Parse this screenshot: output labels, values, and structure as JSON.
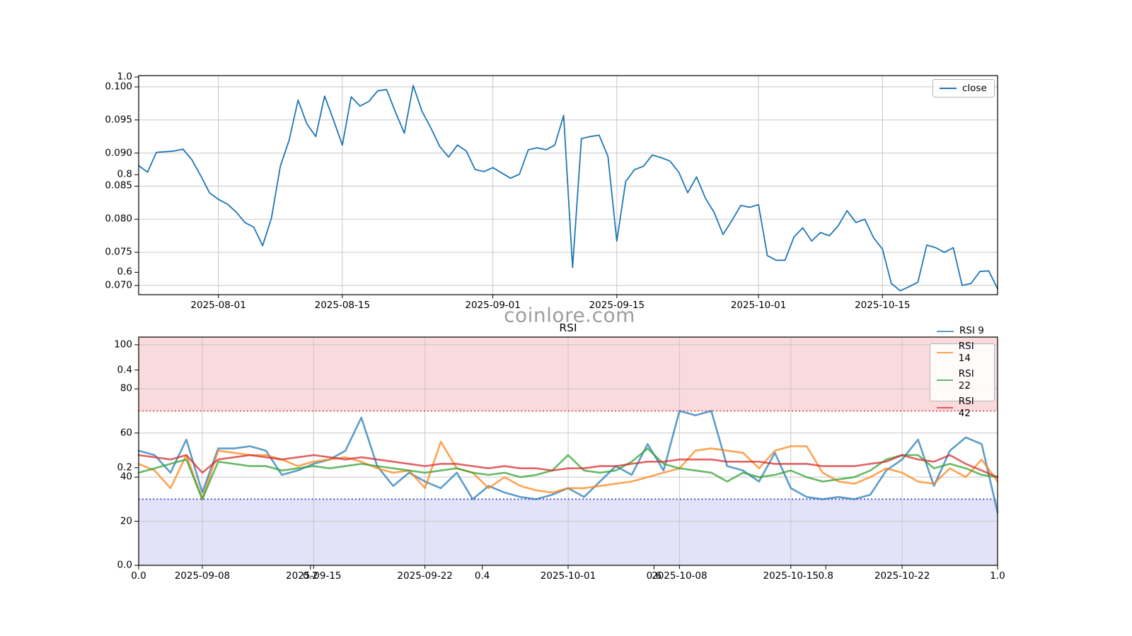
{
  "watermark": "coinlore.com",
  "figure_axis": {
    "left_tick_labels": [
      "1.0",
      "0.8",
      "0.6",
      "0.4",
      "0.2",
      "0.0"
    ],
    "bottom_tick_labels": [
      "0.0",
      "0.2",
      "0.4",
      "0.6",
      "0.8",
      "1.0"
    ]
  },
  "chart_data": [
    {
      "type": "line",
      "title": "",
      "xlabel": "",
      "ylabel": "",
      "start_date": "2025-07-23",
      "freq": "daily",
      "grid": true,
      "legend_position": "upper right",
      "ylim": [
        0.0686,
        0.1017
      ],
      "y_ticks": [
        {
          "label": "0.100",
          "value": 0.1
        },
        {
          "label": "0.095",
          "value": 0.095
        },
        {
          "label": "0.090",
          "value": 0.09
        },
        {
          "label": "0.085",
          "value": 0.085
        },
        {
          "label": "0.080",
          "value": 0.08
        },
        {
          "label": "0.075",
          "value": 0.075
        },
        {
          "label": "0.070",
          "value": 0.07
        }
      ],
      "x_ticks": [
        {
          "label": "2025-08-01",
          "day": 9
        },
        {
          "label": "2025-08-15",
          "day": 23
        },
        {
          "label": "2025-09-01",
          "day": 40
        },
        {
          "label": "2025-09-15",
          "day": 54
        },
        {
          "label": "2025-10-01",
          "day": 70
        },
        {
          "label": "2025-10-15",
          "day": 84
        }
      ],
      "series": [
        {
          "name": "close",
          "color": "#1f77b4",
          "opacity": 1,
          "width": 1.8,
          "values": [
            0.0881,
            0.0871,
            0.0901,
            0.0902,
            0.0903,
            0.0906,
            0.089,
            0.0866,
            0.084,
            0.083,
            0.0823,
            0.0811,
            0.0795,
            0.0788,
            0.076,
            0.0802,
            0.088,
            0.092,
            0.098,
            0.0944,
            0.0925,
            0.0986,
            0.095,
            0.0912,
            0.0985,
            0.0971,
            0.0978,
            0.0994,
            0.0996,
            0.0962,
            0.093,
            0.1002,
            0.0963,
            0.0938,
            0.091,
            0.0894,
            0.0912,
            0.0903,
            0.0875,
            0.0872,
            0.0878,
            0.087,
            0.0862,
            0.0868,
            0.0905,
            0.0908,
            0.0905,
            0.0912,
            0.0957,
            0.0727,
            0.0922,
            0.0925,
            0.0927,
            0.0895,
            0.0767,
            0.0857,
            0.0875,
            0.088,
            0.0897,
            0.0893,
            0.0888,
            0.0871,
            0.084,
            0.0864,
            0.0832,
            0.081,
            0.0777,
            0.0798,
            0.0821,
            0.0818,
            0.0822,
            0.0745,
            0.0738,
            0.0738,
            0.0773,
            0.0787,
            0.0767,
            0.078,
            0.0775,
            0.079,
            0.0813,
            0.0795,
            0.08,
            0.0772,
            0.0755,
            0.0703,
            0.0692,
            0.0698,
            0.0705,
            0.0761,
            0.0757,
            0.075,
            0.0757,
            0.07,
            0.0703,
            0.0721,
            0.0722,
            0.0695
          ]
        }
      ]
    },
    {
      "type": "line",
      "title": "RSI",
      "xlabel": "",
      "ylabel": "",
      "start_date": "2025-09-04",
      "freq": "daily",
      "grid": true,
      "legend_position": "upper right",
      "ylim": [
        0,
        103.5
      ],
      "overbought_level": 70,
      "oversold_level": 30,
      "overbought_fill": "#f9dadd",
      "oversold_fill": "#e2e2f8",
      "overbought_line_color": "#dc1f28",
      "oversold_line_color": "#2222cc",
      "y_ticks": [
        {
          "label": "100",
          "value": 100
        },
        {
          "label": "80",
          "value": 80
        },
        {
          "label": "60",
          "value": 60
        },
        {
          "label": "40",
          "value": 40
        },
        {
          "label": "20",
          "value": 20
        }
      ],
      "x_ticks": [
        {
          "label": "2025-09-08",
          "day": 4
        },
        {
          "label": "2025-09-15",
          "day": 11
        },
        {
          "label": "2025-09-22",
          "day": 18
        },
        {
          "label": "2025-10-01",
          "day": 27
        },
        {
          "label": "2025-10-08",
          "day": 34
        },
        {
          "label": "2025-10-15",
          "day": 41
        },
        {
          "label": "2025-10-22",
          "day": 48
        }
      ],
      "series": [
        {
          "name": "RSI 9",
          "color": "#1f77b4",
          "opacity": 0.72,
          "width": 2.6,
          "values": [
            52,
            50,
            42,
            57,
            33,
            53,
            53,
            54,
            52,
            41,
            43,
            46,
            48,
            52,
            67,
            45,
            36,
            42,
            38,
            35,
            42,
            30,
            36,
            33,
            31,
            30,
            32,
            35,
            31,
            38,
            45,
            41,
            55,
            43,
            70,
            68,
            70,
            45,
            43,
            38,
            51,
            35,
            31,
            30,
            31,
            30,
            32,
            43,
            48,
            57,
            36,
            52,
            58,
            55,
            24
          ]
        },
        {
          "name": "RSI 14",
          "color": "#ff7f0e",
          "opacity": 0.72,
          "width": 2.6,
          "values": [
            46,
            43,
            35,
            50,
            30,
            52,
            51,
            50,
            50,
            48,
            45,
            47,
            48,
            49,
            47,
            44,
            42,
            43,
            35,
            56,
            44,
            42,
            35,
            40,
            36,
            34,
            33,
            35,
            35,
            36,
            37,
            38,
            40,
            42,
            44,
            52,
            53,
            52,
            51,
            44,
            52,
            54,
            54,
            42,
            38,
            37,
            40,
            44,
            42,
            38,
            37,
            44,
            40,
            48,
            38
          ]
        },
        {
          "name": "RSI 22",
          "color": "#2ca02c",
          "opacity": 0.72,
          "width": 2.6,
          "values": [
            42,
            44,
            46,
            48,
            30,
            47,
            46,
            45,
            45,
            43,
            44,
            45,
            44,
            45,
            46,
            45,
            44,
            43,
            42,
            43,
            44,
            42,
            41,
            42,
            40,
            41,
            43,
            50,
            43,
            42,
            43,
            47,
            53,
            46,
            44,
            43,
            42,
            38,
            42,
            40,
            41,
            43,
            40,
            38,
            39,
            40,
            43,
            48,
            50,
            50,
            44,
            46,
            44,
            41,
            40
          ]
        },
        {
          "name": "RSI 42",
          "color": "#d62728",
          "opacity": 0.72,
          "width": 2.6,
          "values": [
            50,
            49,
            48,
            50,
            42,
            48,
            49,
            50,
            49,
            48,
            49,
            50,
            49,
            48,
            49,
            48,
            47,
            46,
            45,
            46,
            46,
            45,
            44,
            45,
            44,
            44,
            43,
            44,
            44,
            45,
            45,
            46,
            47,
            47,
            48,
            48,
            48,
            47,
            47,
            47,
            46,
            46,
            46,
            45,
            45,
            45,
            46,
            47,
            50,
            48,
            47,
            50,
            46,
            43,
            40
          ]
        }
      ]
    }
  ]
}
